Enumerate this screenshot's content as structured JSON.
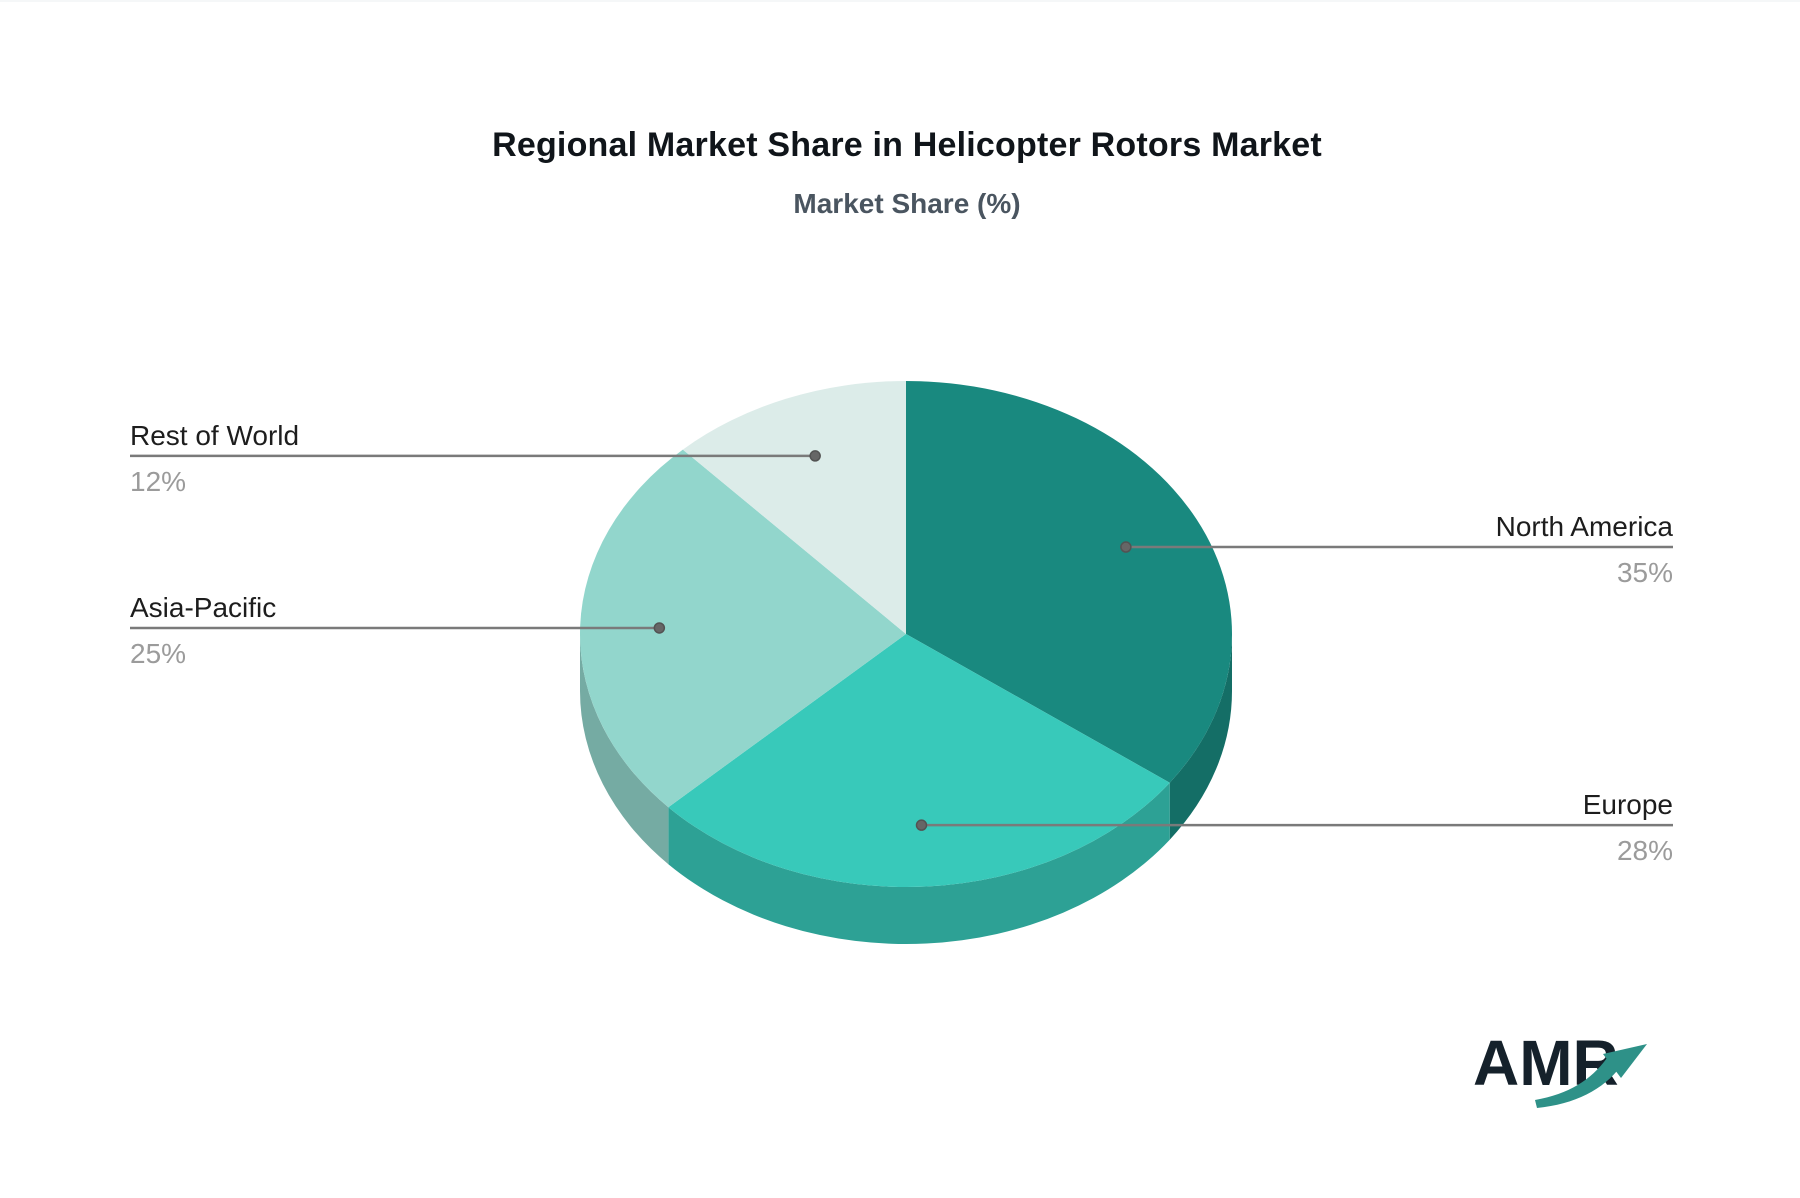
{
  "header": {
    "title": "Regional Market Share in Helicopter Rotors Market",
    "subtitle": "Market Share (%)"
  },
  "chart_data": {
    "type": "pie",
    "title": "Regional Market Share in Helicopter Rotors Market",
    "subtitle": "Market Share (%)",
    "unit": "%",
    "effect": "3d",
    "start_angle": "12-o-clock",
    "direction": "clockwise",
    "legend_position": "none",
    "labeling": "leader-lines",
    "slices": [
      {
        "label": "North America",
        "value": 35,
        "display": "35%",
        "color": "#19897f",
        "side": "right"
      },
      {
        "label": "Europe",
        "value": 28,
        "display": "28%",
        "color": "#38c9ba",
        "side": "right"
      },
      {
        "label": "Asia-Pacific",
        "value": 25,
        "display": "25%",
        "color": "#92d6cc",
        "side": "left"
      },
      {
        "label": "Rest of World",
        "value": 12,
        "display": "12%",
        "color": "#dcece9",
        "side": "left"
      }
    ]
  },
  "colors": {
    "background": "#ffffff",
    "title": "#10151a",
    "subtitle": "#4a5560",
    "slice_label": "#1d1d1d",
    "slice_value": "#9b9b9b",
    "leader_line": "#7a7a7a",
    "leader_dot": "#666666"
  },
  "branding": {
    "logo_text": "AMR",
    "logo_text_color": "#15212b",
    "logo_arrow_color": "#2e9188"
  }
}
